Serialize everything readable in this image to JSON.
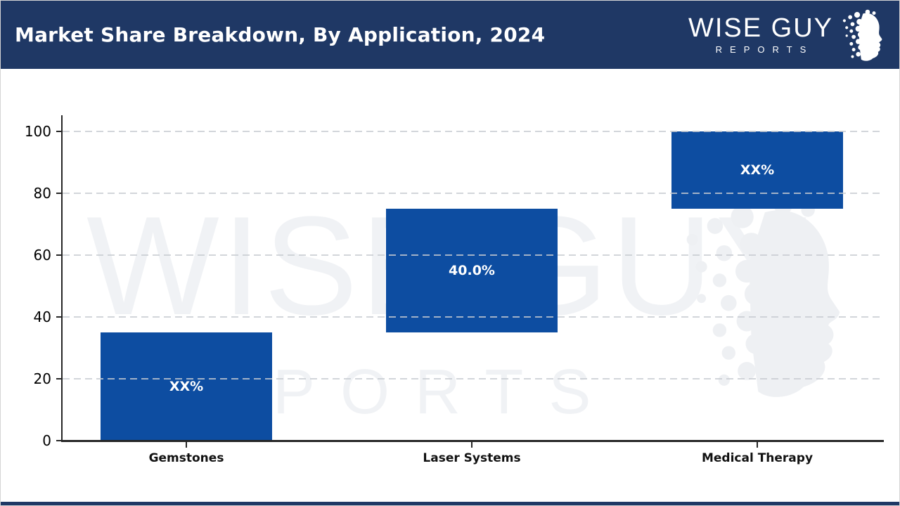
{
  "header": {
    "title": "Market Share Breakdown, By Application, 2024",
    "logo": {
      "line1": "WISE GUY",
      "line2": "REPORTS"
    }
  },
  "watermark": {
    "line1": "WISE GUY",
    "line2": "REPORTS"
  },
  "chart_data": {
    "type": "bar",
    "variant": "stacked-waterfall-floating-bars",
    "title": "Market Share Breakdown, By Application, 2024",
    "categories": [
      "Gemstones",
      "Laser Systems",
      "Medical Therapy"
    ],
    "segments": [
      {
        "category": "Gemstones",
        "start": 0,
        "end": 35,
        "label": "XX%"
      },
      {
        "category": "Laser Systems",
        "start": 35,
        "end": 75,
        "label": "40.0%"
      },
      {
        "category": "Medical Therapy",
        "start": 75,
        "end": 100,
        "label": "XX%"
      }
    ],
    "yticks": [
      0,
      20,
      40,
      60,
      80,
      100
    ],
    "ylim": [
      0,
      105
    ],
    "xlabel": "",
    "ylabel": "",
    "grid": "horizontal-dashed",
    "legend": "none",
    "colors": {
      "bar": "#0d4da1",
      "grid": "#d4d6da",
      "axis": "#262626",
      "header_bg": "#1f3865",
      "bar_label_text": "#ffffff"
    }
  }
}
